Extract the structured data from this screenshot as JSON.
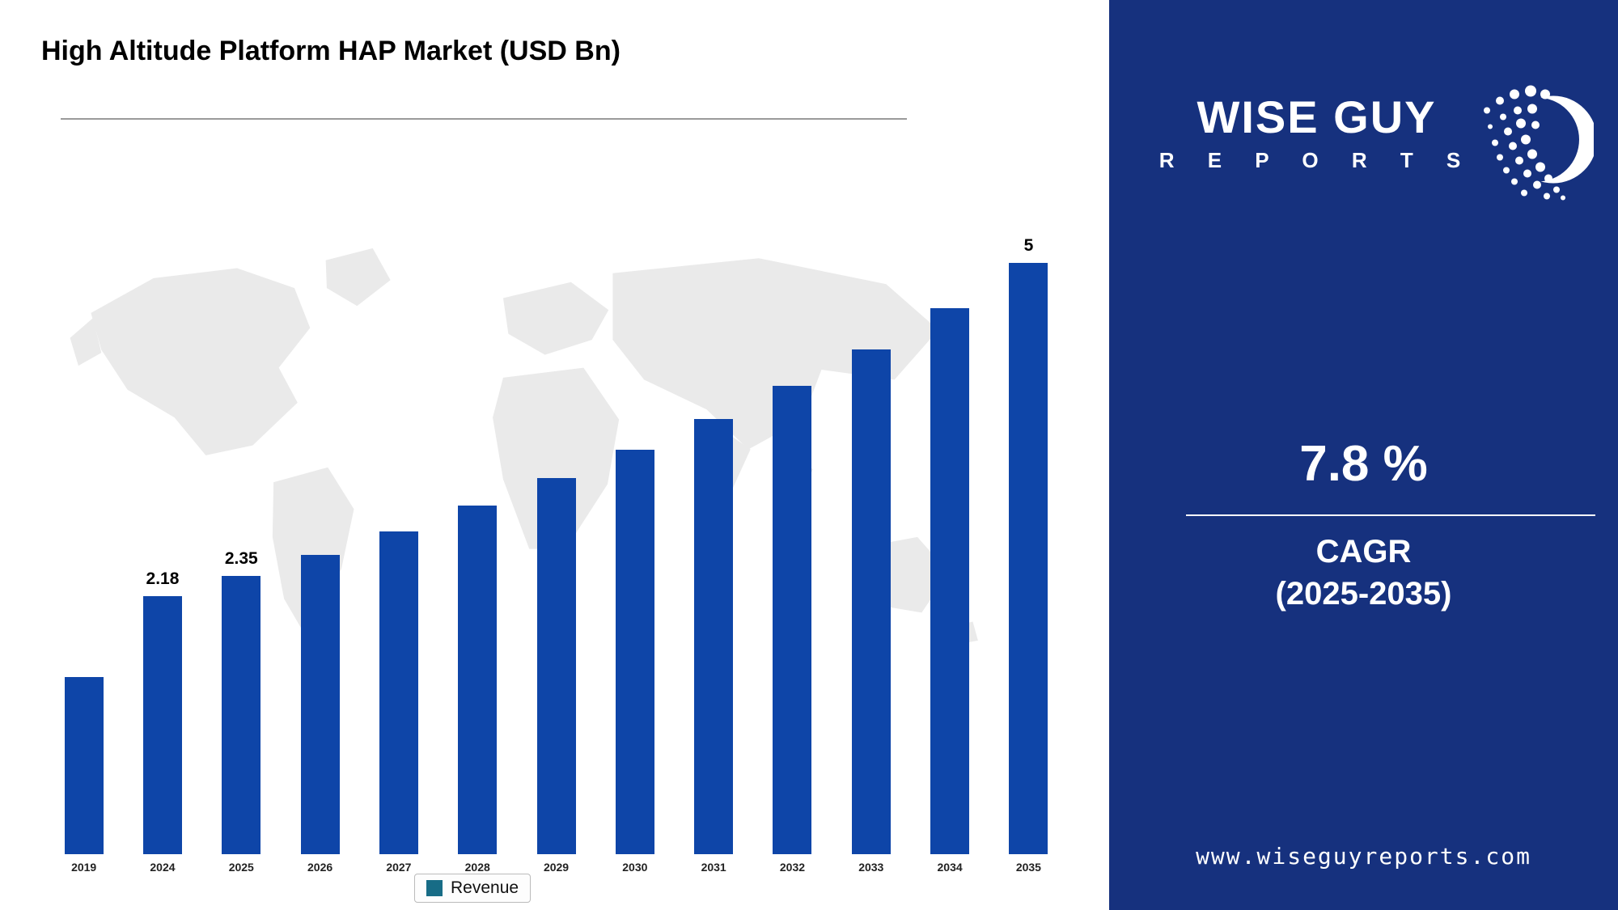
{
  "title": "High Altitude Platform HAP Market (USD Bn)",
  "legend": {
    "label": "Revenue",
    "swatch_color": "#176c86"
  },
  "chart_data": {
    "type": "bar",
    "title": "High Altitude Platform HAP Market (USD Bn)",
    "categories": [
      "2019",
      "2024",
      "2025",
      "2026",
      "2027",
      "2028",
      "2029",
      "2030",
      "2031",
      "2032",
      "2033",
      "2034",
      "2035"
    ],
    "values": [
      1.5,
      2.18,
      2.35,
      2.53,
      2.73,
      2.95,
      3.18,
      3.42,
      3.68,
      3.96,
      4.27,
      4.62,
      5
    ],
    "point_labels": [
      "",
      "2.18",
      "2.35",
      "",
      "",
      "",
      "",
      "",
      "",
      "",
      "",
      "",
      "5"
    ],
    "series_name": "Revenue",
    "xlabel": "",
    "ylabel": "",
    "ylim": [
      0,
      5.4
    ],
    "grid": false,
    "legend_position": "bottom",
    "bar_color": "#0e45a8"
  },
  "side_panel": {
    "background": "#16317e",
    "brand_line1": "WISE GUY",
    "brand_line2": "R E P O R T S",
    "cagr_value": "7.8 %",
    "cagr_label1": "CAGR",
    "cagr_label2": "(2025-2035)",
    "website": "www.wiseguyreports.com"
  }
}
